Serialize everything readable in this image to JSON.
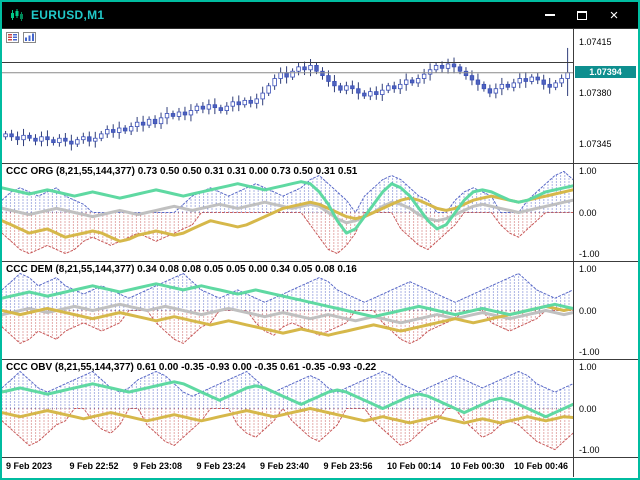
{
  "window": {
    "title": "EURUSD,M1"
  },
  "toolbar": {
    "icons": [
      "depth-of-market-icon",
      "bar-chart-icon"
    ]
  },
  "price_panel": {
    "range": [
      1.07332,
      1.07424
    ],
    "axis_labels": [
      {
        "text": "1.07415",
        "value": 1.07415
      },
      {
        "text": "1.07380",
        "value": 1.0738
      },
      {
        "text": "1.07345",
        "value": 1.07345
      }
    ],
    "current_price": {
      "text": "1.07394",
      "value": 1.07394
    },
    "hlines": [
      1.07401
    ]
  },
  "indicator_panels": [
    {
      "label": "CCC ORG (8,21,55,144,377) 0.73 0.50 0.50 0.31 0.31 0.00 0.73 0.50 0.31 0.51",
      "range": [
        -1.18,
        1.18
      ],
      "axis_labels": [
        {
          "text": "1.00",
          "value": 1
        },
        {
          "text": "0.00",
          "value": 0
        },
        {
          "text": "-1.00",
          "value": -1
        }
      ]
    },
    {
      "label": "CCC DEM (8,21,55,144,377) 0.34 0.08 0.08 0.05 0.05 0.00 0.34 0.05 0.08 0.16",
      "range": [
        -1.18,
        1.18
      ],
      "axis_labels": [
        {
          "text": "1.00",
          "value": 1
        },
        {
          "text": "0.00",
          "value": 0
        },
        {
          "text": "-1.00",
          "value": -1
        }
      ]
    },
    {
      "label": "CCC OBV (8,21,55,144,377) 0.61 0.00 -0.35 -0.93 0.00 -0.35 0.61 -0.35 -0.93 -0.22",
      "range": [
        -1.18,
        1.18
      ],
      "axis_labels": [
        {
          "text": "1.00",
          "value": 1
        },
        {
          "text": "0.00",
          "value": 0
        },
        {
          "text": "-1.00",
          "value": -1
        }
      ]
    }
  ],
  "time_axis": {
    "labels": [
      "9 Feb 2023",
      "9 Feb 22:52",
      "9 Feb 23:08",
      "9 Feb 23:24",
      "9 Feb 23:40",
      "9 Feb 23:56",
      "10 Feb 00:14",
      "10 Feb 00:30",
      "10 Feb 00:46"
    ]
  },
  "colors": {
    "window_border": "#00bca0",
    "titlebar_bg": "#000000",
    "title_text": "#21c9c9",
    "price_badge_bg": "#0e8f8f",
    "bull_fill": "#ffffff",
    "bear_fill": "#4f63bd",
    "candle_stroke": "#3a4fb8",
    "wick": "#2f3e7a",
    "hist_red": "#c85a5a",
    "hist_blue": "#5a6ac8",
    "line_green": "#5fd9a2",
    "line_gold": "#d6b84a",
    "line_gray": "#c0c0c0",
    "hline": "#3c3c3c",
    "bid_line": "#8a8a8a"
  },
  "chart_data": {
    "type": "candlestick-with-oscillators",
    "symbol": "EURUSD",
    "timeframe": "M1",
    "price_ylim": [
      1.07332,
      1.07424
    ],
    "oscillator_ylim": [
      -1,
      1
    ],
    "price_closes": [
      1.07352,
      1.0735,
      1.07348,
      1.07351,
      1.07349,
      1.07347,
      1.0735,
      1.07348,
      1.07346,
      1.07349,
      1.07347,
      1.07345,
      1.07348,
      1.0735,
      1.07347,
      1.07349,
      1.07352,
      1.07355,
      1.07353,
      1.07356,
      1.07354,
      1.07357,
      1.0736,
      1.07358,
      1.07362,
      1.07359,
      1.07363,
      1.07366,
      1.07364,
      1.07367,
      1.07365,
      1.07368,
      1.07371,
      1.07369,
      1.07372,
      1.0737,
      1.07368,
      1.07371,
      1.07374,
      1.07372,
      1.07375,
      1.07373,
      1.07376,
      1.0738,
      1.07385,
      1.0739,
      1.07394,
      1.07391,
      1.07395,
      1.07398,
      1.07396,
      1.07399,
      1.07395,
      1.07392,
      1.07388,
      1.07385,
      1.07382,
      1.07385,
      1.07383,
      1.0738,
      1.07378,
      1.07381,
      1.07379,
      1.07382,
      1.07385,
      1.07383,
      1.07386,
      1.07389,
      1.07387,
      1.0739,
      1.07393,
      1.07396,
      1.07399,
      1.07397,
      1.074,
      1.07398,
      1.07395,
      1.07392,
      1.07389,
      1.07386,
      1.07383,
      1.0738,
      1.07383,
      1.07386,
      1.07384,
      1.07387,
      1.0739,
      1.07388,
      1.07391,
      1.07389,
      1.07386,
      1.07384,
      1.07387,
      1.0739,
      1.07394
    ],
    "oscillators": [
      {
        "name": "CCC ORG",
        "hist_red": [
          -0.5,
          -0.7,
          -0.9,
          -1.0,
          -0.9,
          -0.8,
          -0.9,
          -1.0,
          -0.9,
          -0.7,
          -0.6,
          -0.7,
          -0.8,
          -0.7,
          -0.6,
          -0.5,
          -0.6,
          -0.7,
          -0.6,
          -0.5,
          -0.4,
          -0.3,
          0,
          0,
          0,
          0,
          0,
          0,
          0,
          0,
          0,
          0,
          0,
          0,
          -0.3,
          -0.6,
          -0.9,
          -1.0,
          -0.8,
          -0.5,
          0,
          0,
          0,
          0,
          -0.4,
          -0.6,
          -0.8,
          -0.9,
          -0.7,
          -0.5,
          -0.3,
          0,
          0,
          0,
          0,
          -0.3,
          -0.5,
          -0.6,
          -0.4,
          -0.2,
          0,
          0,
          0,
          0
        ],
        "hist_blue": [
          0.3,
          0.5,
          0.6,
          0.5,
          0.4,
          0.5,
          0.6,
          0.4,
          0.3,
          0.2,
          0,
          0,
          0,
          0,
          0,
          0,
          0,
          0,
          0,
          0,
          0.2,
          0.4,
          0.5,
          0.6,
          0.5,
          0.4,
          0.5,
          0.6,
          0.7,
          0.6,
          0.5,
          0.4,
          0.5,
          0.6,
          0.8,
          0.9,
          0.7,
          0.5,
          0.3,
          0,
          0.4,
          0.6,
          0.8,
          0.9,
          0.8,
          0.6,
          0.4,
          0.3,
          0,
          0,
          0.3,
          0.5,
          0.6,
          0.5,
          0.4,
          0,
          0,
          0,
          0.3,
          0.5,
          0.7,
          0.9,
          1.0,
          0.8
        ],
        "line_green": [
          0.6,
          0.55,
          0.5,
          0.45,
          0.5,
          0.55,
          0.5,
          0.45,
          0.4,
          0.45,
          0.5,
          0.45,
          0.4,
          0.35,
          0.4,
          0.45,
          0.5,
          0.55,
          0.5,
          0.45,
          0.4,
          0.45,
          0.5,
          0.55,
          0.6,
          0.65,
          0.7,
          0.65,
          0.6,
          0.55,
          0.6,
          0.65,
          0.7,
          0.75,
          0.7,
          0.5,
          0.2,
          -0.2,
          -0.5,
          -0.4,
          -0.1,
          0.2,
          0.5,
          0.7,
          0.6,
          0.4,
          0.1,
          -0.2,
          -0.4,
          -0.3,
          0,
          0.3,
          0.5,
          0.55,
          0.5,
          0.4,
          0.3,
          0.25,
          0.3,
          0.4,
          0.5,
          0.55,
          0.6,
          0.65
        ],
        "line_gold": [
          -0.2,
          -0.3,
          -0.4,
          -0.5,
          -0.45,
          -0.4,
          -0.5,
          -0.6,
          -0.55,
          -0.5,
          -0.45,
          -0.5,
          -0.6,
          -0.7,
          -0.65,
          -0.55,
          -0.5,
          -0.45,
          -0.5,
          -0.55,
          -0.5,
          -0.4,
          -0.3,
          -0.2,
          -0.25,
          -0.3,
          -0.35,
          -0.3,
          -0.2,
          -0.1,
          0,
          0.1,
          0.15,
          0.2,
          0.25,
          0.2,
          0.1,
          0,
          -0.1,
          -0.15,
          -0.1,
          0,
          0.1,
          0.2,
          0.3,
          0.35,
          0.3,
          0.2,
          0.1,
          0.05,
          0.1,
          0.2,
          0.3,
          0.35,
          0.4,
          0.35,
          0.3,
          0.25,
          0.3,
          0.35,
          0.4,
          0.45,
          0.5,
          0.55
        ],
        "line_gray": [
          0.1,
          0.05,
          0,
          -0.05,
          0,
          0.05,
          0.1,
          0.05,
          0,
          -0.05,
          -0.1,
          -0.05,
          0,
          0.05,
          0,
          -0.05,
          0,
          0.05,
          0.1,
          0.15,
          0.1,
          0.05,
          0.1,
          0.15,
          0.2,
          0.15,
          0.1,
          0.15,
          0.2,
          0.25,
          0.2,
          0.15,
          0.1,
          0.15,
          0.2,
          0.15,
          0,
          -0.15,
          -0.25,
          -0.2,
          -0.1,
          0,
          0.15,
          0.25,
          0.2,
          0.1,
          -0.05,
          -0.15,
          -0.2,
          -0.15,
          -0.05,
          0.05,
          0.15,
          0.2,
          0.15,
          0.1,
          0.05,
          0,
          0.05,
          0.1,
          0.15,
          0.2,
          0.25,
          0.3
        ]
      },
      {
        "name": "CCC DEM",
        "hist_red": [
          -0.4,
          -0.6,
          -0.8,
          -0.7,
          -0.5,
          -0.6,
          -0.7,
          -0.5,
          -0.4,
          -0.3,
          -0.4,
          -0.5,
          -0.4,
          -0.3,
          0,
          0,
          0,
          -0.3,
          -0.5,
          -0.7,
          -0.8,
          -0.6,
          -0.4,
          -0.3,
          0,
          0,
          0,
          0,
          -0.3,
          -0.5,
          -0.6,
          -0.4,
          -0.3,
          -0.4,
          -0.5,
          -0.6,
          -0.5,
          -0.4,
          -0.3,
          0,
          0,
          0,
          -0.3,
          -0.5,
          -0.7,
          -0.8,
          -0.7,
          -0.5,
          -0.4,
          -0.3,
          -0.2,
          0,
          0,
          0,
          -0.3,
          -0.4,
          -0.5,
          -0.4,
          -0.3,
          -0.2,
          0,
          0,
          0,
          0
        ],
        "hist_blue": [
          0.5,
          0.7,
          0.9,
          0.8,
          0.6,
          0.7,
          0.8,
          0.6,
          0.5,
          0.4,
          0.5,
          0.6,
          0.5,
          0.4,
          0.3,
          0.4,
          0.5,
          0.6,
          0.7,
          0.8,
          0.9,
          0.7,
          0.5,
          0.4,
          0.3,
          0.4,
          0.5,
          0.4,
          0.3,
          0.2,
          0.3,
          0.4,
          0.5,
          0.6,
          0.7,
          0.8,
          0.7,
          0.5,
          0.4,
          0.3,
          0.2,
          0.3,
          0.4,
          0.5,
          0.6,
          0.7,
          0.6,
          0.5,
          0.4,
          0.3,
          0.2,
          0.3,
          0.4,
          0.5,
          0.6,
          0.7,
          0.8,
          0.9,
          0.7,
          0.5,
          0.4,
          0.3,
          0.4,
          0.5
        ],
        "line_green": [
          0.3,
          0.35,
          0.4,
          0.45,
          0.4,
          0.35,
          0.4,
          0.45,
          0.5,
          0.55,
          0.6,
          0.55,
          0.5,
          0.45,
          0.5,
          0.55,
          0.6,
          0.65,
          0.6,
          0.55,
          0.5,
          0.55,
          0.6,
          0.55,
          0.5,
          0.45,
          0.4,
          0.45,
          0.5,
          0.45,
          0.4,
          0.35,
          0.3,
          0.25,
          0.2,
          0.15,
          0.1,
          0.05,
          0,
          -0.05,
          -0.1,
          -0.15,
          -0.1,
          -0.05,
          0,
          0.05,
          0.1,
          0.05,
          0,
          -0.05,
          -0.1,
          -0.05,
          0,
          0.05,
          0,
          -0.05,
          -0.1,
          -0.05,
          0,
          0.05,
          0.1,
          0.15,
          0.1,
          0.05
        ],
        "line_gold": [
          0,
          -0.05,
          -0.1,
          -0.05,
          0,
          0.05,
          0,
          -0.05,
          -0.1,
          -0.15,
          -0.2,
          -0.15,
          -0.1,
          -0.05,
          -0.1,
          -0.15,
          -0.2,
          -0.25,
          -0.2,
          -0.15,
          -0.2,
          -0.25,
          -0.3,
          -0.35,
          -0.3,
          -0.25,
          -0.3,
          -0.35,
          -0.4,
          -0.45,
          -0.5,
          -0.55,
          -0.5,
          -0.45,
          -0.5,
          -0.55,
          -0.6,
          -0.55,
          -0.5,
          -0.45,
          -0.4,
          -0.35,
          -0.4,
          -0.45,
          -0.5,
          -0.45,
          -0.4,
          -0.35,
          -0.3,
          -0.25,
          -0.2,
          -0.25,
          -0.3,
          -0.25,
          -0.2,
          -0.15,
          -0.1,
          -0.05,
          0,
          0.05,
          0.1,
          0.05,
          0,
          0.05
        ],
        "line_gray": [
          -0.1,
          -0.05,
          0,
          0.05,
          0,
          -0.05,
          0,
          0.05,
          0.1,
          0.05,
          0,
          0.05,
          0.1,
          0.15,
          0.1,
          0.05,
          0,
          0.05,
          0.1,
          0.05,
          0,
          -0.05,
          -0.1,
          -0.05,
          0,
          0.05,
          0,
          -0.05,
          -0.1,
          -0.15,
          -0.1,
          -0.05,
          -0.1,
          -0.15,
          -0.2,
          -0.15,
          -0.1,
          -0.15,
          -0.2,
          -0.25,
          -0.2,
          -0.15,
          -0.2,
          -0.25,
          -0.3,
          -0.25,
          -0.2,
          -0.15,
          -0.1,
          -0.15,
          -0.2,
          -0.15,
          -0.1,
          -0.05,
          -0.1,
          -0.15,
          -0.2,
          -0.15,
          -0.1,
          -0.05,
          0,
          -0.05,
          -0.1,
          -0.05
        ]
      },
      {
        "name": "CCC OBV",
        "hist_red": [
          -0.3,
          -0.5,
          -0.7,
          -0.9,
          -0.8,
          -0.6,
          -0.4,
          -0.3,
          0,
          0,
          -0.3,
          -0.5,
          -0.6,
          -0.4,
          0,
          0,
          -0.4,
          -0.6,
          -0.8,
          -0.9,
          -0.7,
          -0.5,
          -0.3,
          0,
          0,
          0,
          -0.4,
          -0.6,
          -0.7,
          -0.5,
          -0.3,
          0,
          -0.3,
          -0.5,
          -0.7,
          -0.8,
          -0.6,
          -0.4,
          0,
          0,
          0,
          -0.3,
          -0.5,
          -0.7,
          -0.9,
          -0.8,
          -0.6,
          -0.4,
          -0.3,
          0,
          0,
          -0.3,
          -0.5,
          -0.7,
          -0.6,
          -0.4,
          -0.3,
          -0.4,
          -0.6,
          -0.8,
          -0.9,
          -1.0,
          -0.8,
          -0.6
        ],
        "hist_blue": [
          0.5,
          0.7,
          0.9,
          0.7,
          0.5,
          0.4,
          0.5,
          0.6,
          0.7,
          0.8,
          0.9,
          0.7,
          0.5,
          0.4,
          0.5,
          0.7,
          0.8,
          0.9,
          0.8,
          0.6,
          0.4,
          0.3,
          0.4,
          0.5,
          0.6,
          0.7,
          0.8,
          0.9,
          0.7,
          0.5,
          0.4,
          0.5,
          0.6,
          0.7,
          0.8,
          0.7,
          0.5,
          0.4,
          0.5,
          0.6,
          0.7,
          0.8,
          0.9,
          0.8,
          0.6,
          0.5,
          0.4,
          0.5,
          0.6,
          0.7,
          0.8,
          0.7,
          0.6,
          0.5,
          0.6,
          0.7,
          0.8,
          0.9,
          0.8,
          0.6,
          0.5,
          0.4,
          0.5,
          0.6
        ],
        "line_green": [
          0.4,
          0.45,
          0.5,
          0.45,
          0.4,
          0.35,
          0.4,
          0.45,
          0.5,
          0.55,
          0.6,
          0.55,
          0.5,
          0.45,
          0.4,
          0.45,
          0.5,
          0.55,
          0.6,
          0.65,
          0.6,
          0.5,
          0.4,
          0.3,
          0.2,
          0.3,
          0.4,
          0.5,
          0.55,
          0.5,
          0.4,
          0.3,
          0.2,
          0.1,
          0.2,
          0.3,
          0.4,
          0.45,
          0.4,
          0.3,
          0.2,
          0.1,
          0,
          0.1,
          0.2,
          0.3,
          0.35,
          0.3,
          0.2,
          0.1,
          0,
          -0.1,
          0,
          0.1,
          0.2,
          0.25,
          0.2,
          0.1,
          0,
          -0.1,
          -0.2,
          -0.1,
          0,
          0.1
        ],
        "line_gold": [
          -0.1,
          -0.15,
          -0.2,
          -0.15,
          -0.1,
          -0.05,
          -0.1,
          -0.15,
          -0.2,
          -0.25,
          -0.2,
          -0.15,
          -0.1,
          -0.15,
          -0.2,
          -0.25,
          -0.3,
          -0.25,
          -0.2,
          -0.15,
          -0.2,
          -0.25,
          -0.3,
          -0.25,
          -0.2,
          -0.15,
          -0.1,
          -0.05,
          -0.1,
          -0.15,
          -0.2,
          -0.15,
          -0.1,
          -0.05,
          0,
          -0.05,
          -0.1,
          -0.15,
          -0.2,
          -0.25,
          -0.3,
          -0.25,
          -0.2,
          -0.25,
          -0.3,
          -0.35,
          -0.3,
          -0.25,
          -0.2,
          -0.25,
          -0.3,
          -0.35,
          -0.3,
          -0.25,
          -0.3,
          -0.35,
          -0.3,
          -0.25,
          -0.2,
          -0.25,
          -0.3,
          -0.25,
          -0.2,
          -0.22
        ]
      }
    ]
  }
}
